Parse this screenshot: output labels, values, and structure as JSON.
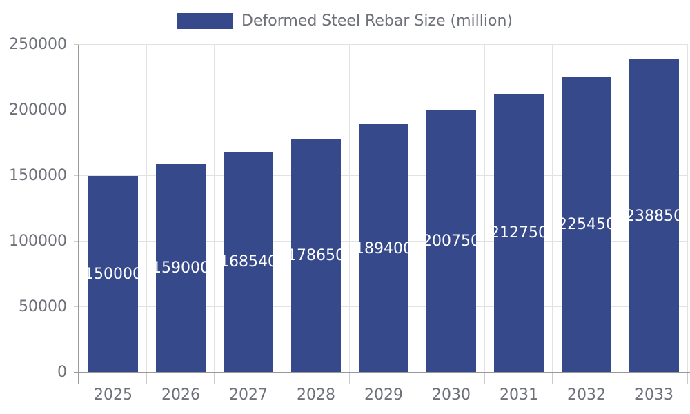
{
  "legend": {
    "label": "Deformed Steel Rebar Size (million)"
  },
  "chart_data": {
    "type": "bar",
    "title": "",
    "series_name": "Deformed Steel Rebar Size (million)",
    "categories": [
      "2025",
      "2026",
      "2027",
      "2028",
      "2029",
      "2030",
      "2031",
      "2032",
      "2033"
    ],
    "values": [
      150000,
      159000,
      168540,
      178650,
      189400,
      200750,
      212750,
      225450,
      238850
    ],
    "value_labels": [
      "150000",
      "159000",
      "168540",
      "178650",
      "189400",
      "200750",
      "212750",
      "225450",
      "238850"
    ],
    "xlabel": "",
    "ylabel": "",
    "ylim": [
      0,
      250000
    ],
    "yticks": [
      0,
      50000,
      100000,
      150000,
      200000,
      250000
    ],
    "ytick_labels": [
      "0",
      "50000",
      "100000",
      "150000",
      "200000",
      "250000"
    ],
    "grid": true,
    "legend_position": "top-center",
    "bar_label_position": "inside-center",
    "colors": {
      "bar": "#36498B",
      "bar_label": "#FFFFFF",
      "axis_text": "#6E7079",
      "legend_text": "#6E7079",
      "grid_line": "#E2E2E2",
      "axis_line": "#999999",
      "tick_line": "#CCCCCC",
      "background": "#FFFFFF"
    }
  }
}
